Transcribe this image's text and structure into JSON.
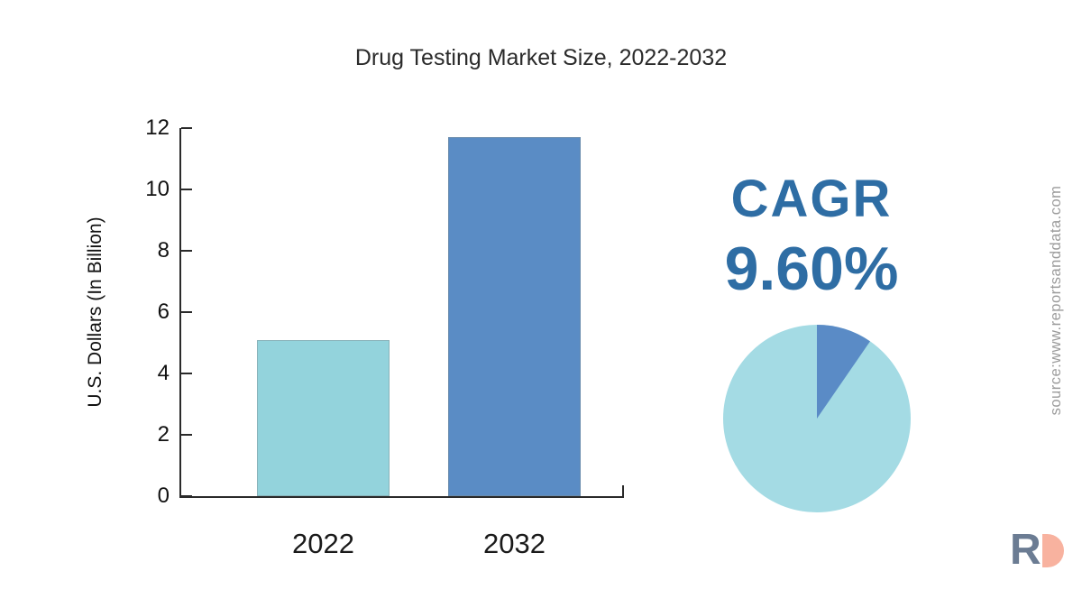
{
  "title": "Drug Testing Market Size, 2022-2032",
  "colors": {
    "bar_2022": "#93d3dc",
    "bar_2032": "#5a8cc5",
    "pie_main": "#a4dbe4",
    "pie_slice": "#5a8bc6",
    "cagr_text": "#2e6da4",
    "axis": "#2a2a2a",
    "source_text": "#9b9b9b",
    "logo_r": "#6b7c93",
    "logo_d": "#f8b29f"
  },
  "chart_data": [
    {
      "type": "bar",
      "title": "Drug Testing Market Size, 2022-2032",
      "categories": [
        "2022",
        "2032"
      ],
      "values": [
        5.1,
        11.7
      ],
      "xlabel": "",
      "ylabel": "U.S. Dollars (In Billion)",
      "ylim": [
        0,
        12
      ],
      "yticks": [
        0,
        2,
        4,
        6,
        8,
        10,
        12
      ],
      "grid": false,
      "legend": false
    },
    {
      "type": "pie",
      "title": "CAGR 9.60%",
      "slices": [
        {
          "label": "CAGR",
          "value": 9.6
        },
        {
          "label": "remainder",
          "value": 90.4
        }
      ],
      "start_angle_deg": 0,
      "direction": "clockwise",
      "legend": false
    }
  ],
  "cagr": {
    "heading": "CAGR",
    "value": "9.60%"
  },
  "source_note": "source:www.reportsanddata.com",
  "logo": {
    "r": "R"
  }
}
